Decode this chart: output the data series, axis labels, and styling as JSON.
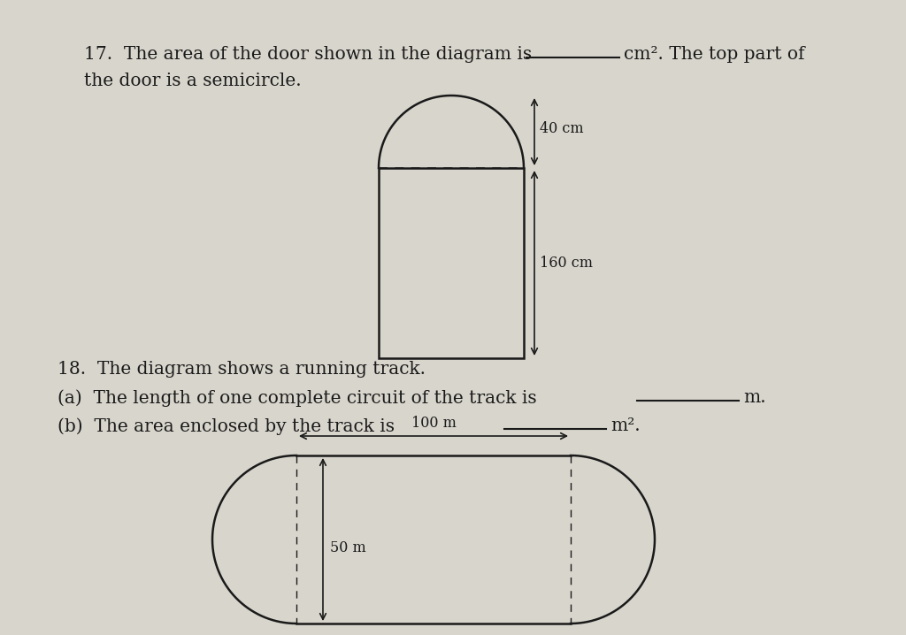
{
  "bg_color": "#d8d5cc",
  "paper_color": "#e8e5de",
  "text_color": "#1a1a1a",
  "q17_text_line1": "17.  The area of the door shown in the diagram is",
  "q17_text_line2": "the door is a semicircle.",
  "q17_suffix": "cm². The top part of",
  "q18_text": "18.  The diagram shows a running track.",
  "q18a_text": "(a)  The length of one complete circuit of the track is",
  "q18a_suffix": "m.",
  "q18b_text": "(b)  The area enclosed by the track is",
  "q18b_suffix": "m².",
  "label_40cm": "40 cm",
  "label_160cm": "160 cm",
  "label_100m": "100 m",
  "label_50m": "50 m"
}
